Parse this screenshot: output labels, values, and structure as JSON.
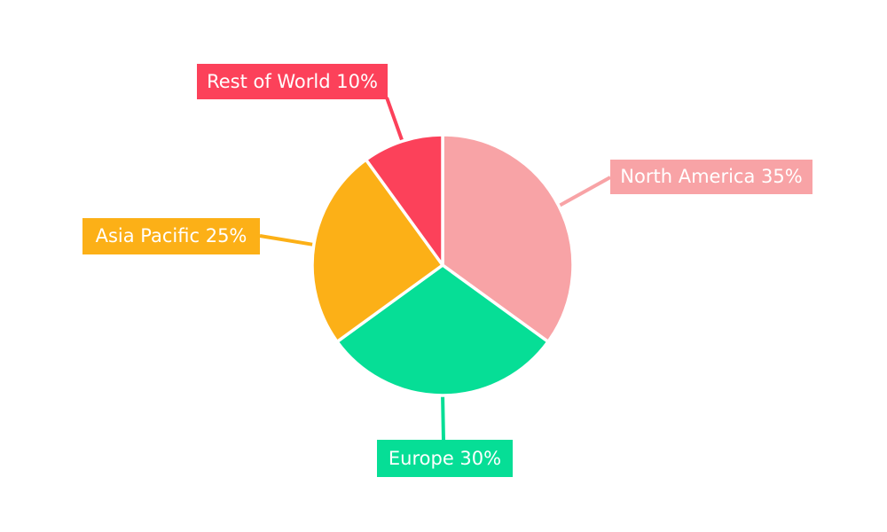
{
  "page": {
    "background_color": "#ffffff",
    "text_color": "#ffffff"
  },
  "chart_data": {
    "type": "pie",
    "title": "",
    "start_angle_deg": 0,
    "direction": "clockwise",
    "label_style": "callout-boxes-with-leader-lines",
    "legend_position": "none",
    "categories": [
      "North America",
      "Europe",
      "Asia Pacific",
      "Rest of World"
    ],
    "values": [
      35,
      30,
      25,
      10
    ],
    "slices": [
      {
        "label": "North America",
        "value": 35,
        "display_label": "North America 35%",
        "color": "#F8A3A6"
      },
      {
        "label": "Europe",
        "value": 30,
        "display_label": "Europe 30%",
        "color": "#06DE96"
      },
      {
        "label": "Asia Pacific",
        "value": 25,
        "display_label": "Asia Pacific 25%",
        "color": "#FCB017"
      },
      {
        "label": "Rest of World",
        "value": 10,
        "display_label": "Rest of World 10%",
        "color": "#FC415A"
      }
    ]
  }
}
